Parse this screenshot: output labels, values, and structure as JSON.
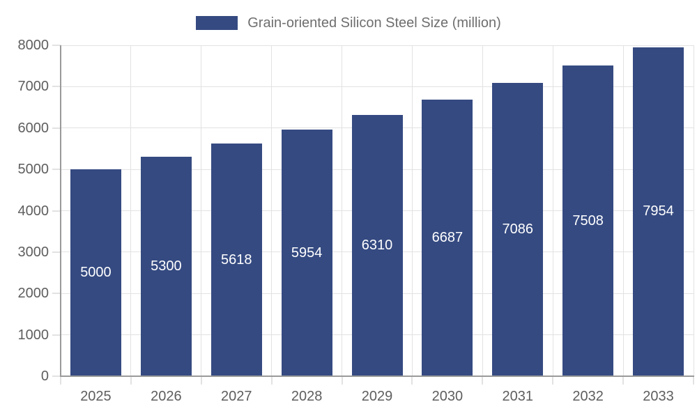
{
  "legend": {
    "label": "Grain-oriented Silicon Steel Size (million)"
  },
  "chart_data": {
    "type": "bar",
    "title": "Grain-oriented Silicon Steel Size (million)",
    "categories": [
      "2025",
      "2026",
      "2027",
      "2028",
      "2029",
      "2030",
      "2031",
      "2032",
      "2033"
    ],
    "series": [
      {
        "name": "Grain-oriented Silicon Steel Size (million)",
        "values": [
          5000,
          5300,
          5618,
          5954,
          6310,
          6687,
          7086,
          7508,
          7954
        ]
      }
    ],
    "xlabel": "",
    "ylabel": "",
    "ylim": [
      0,
      8000
    ],
    "yticks": [
      0,
      1000,
      2000,
      3000,
      4000,
      5000,
      6000,
      7000,
      8000
    ],
    "grid": true,
    "legend_position": "top",
    "value_labels_position": "inside-center"
  },
  "colors": {
    "bar": "#354A81",
    "grid": "#E2E2E2",
    "axis_line": "#9A9A9A",
    "axis_text": "#5E5E5E",
    "legend_text": "#6E6E6E",
    "bar_label_text": "#FFFFFF",
    "background": "#FFFFFF"
  }
}
